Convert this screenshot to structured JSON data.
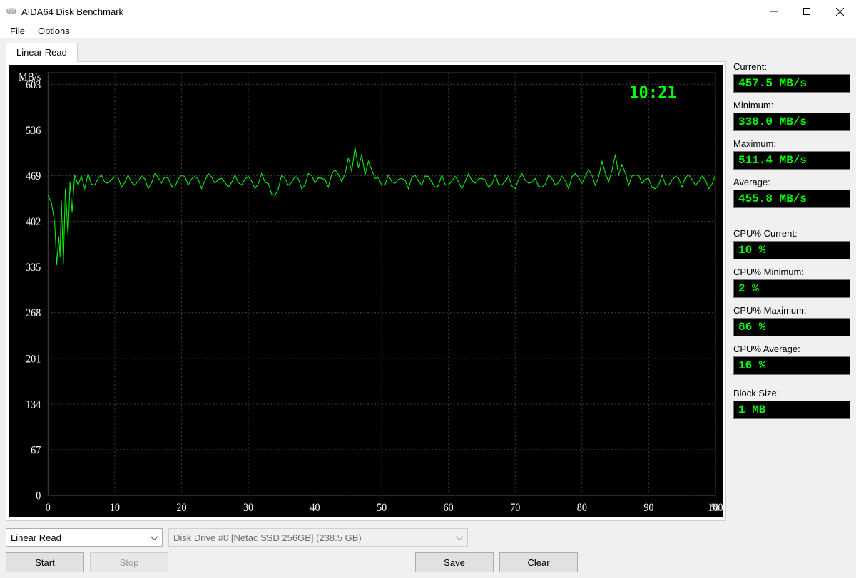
{
  "window": {
    "title": "AIDA64 Disk Benchmark"
  },
  "menu": {
    "file": "File",
    "options": "Options"
  },
  "tab": {
    "linear_read": "Linear Read"
  },
  "chart": {
    "type": "line",
    "background_color": "#000000",
    "grid_color": "#404040",
    "axis_text_color": "#ffffff",
    "line_color": "#00ff00",
    "timer_color": "#00ff00",
    "timer_fontsize": 22,
    "timer_text": "10:21",
    "y_unit": "MB/s",
    "y_ticks": [
      0,
      67,
      134,
      201,
      268,
      335,
      402,
      469,
      536,
      603
    ],
    "ylim": [
      0,
      620
    ],
    "x_unit": "%",
    "x_ticks": [
      0,
      10,
      20,
      30,
      40,
      50,
      60,
      70,
      80,
      90,
      100
    ],
    "xlim": [
      0,
      100
    ],
    "line_width": 1,
    "data": [
      [
        0,
        440
      ],
      [
        0.5,
        430
      ],
      [
        1,
        400
      ],
      [
        1.3,
        338
      ],
      [
        1.6,
        380
      ],
      [
        1.8,
        350
      ],
      [
        2,
        432
      ],
      [
        2.3,
        340
      ],
      [
        2.6,
        450
      ],
      [
        3,
        380
      ],
      [
        3.3,
        460
      ],
      [
        3.6,
        415
      ],
      [
        4,
        470
      ],
      [
        4.5,
        455
      ],
      [
        5,
        468
      ],
      [
        5.5,
        450
      ],
      [
        6,
        472
      ],
      [
        7,
        455
      ],
      [
        8,
        470
      ],
      [
        9,
        458
      ],
      [
        10,
        467
      ],
      [
        11,
        452
      ],
      [
        12,
        470
      ],
      [
        13,
        455
      ],
      [
        14,
        468
      ],
      [
        15,
        450
      ],
      [
        16,
        472
      ],
      [
        17,
        458
      ],
      [
        18,
        465
      ],
      [
        19,
        452
      ],
      [
        20,
        470
      ],
      [
        21,
        455
      ],
      [
        22,
        468
      ],
      [
        23,
        450
      ],
      [
        24,
        472
      ],
      [
        25,
        458
      ],
      [
        26,
        465
      ],
      [
        27,
        452
      ],
      [
        28,
        470
      ],
      [
        29,
        455
      ],
      [
        30,
        468
      ],
      [
        31,
        450
      ],
      [
        32,
        472
      ],
      [
        33,
        458
      ],
      [
        34,
        440
      ],
      [
        35,
        470
      ],
      [
        36,
        455
      ],
      [
        37,
        468
      ],
      [
        38,
        450
      ],
      [
        39,
        472
      ],
      [
        40,
        458
      ],
      [
        41,
        465
      ],
      [
        42,
        452
      ],
      [
        43,
        478
      ],
      [
        44,
        460
      ],
      [
        45,
        495
      ],
      [
        45.5,
        475
      ],
      [
        46,
        511
      ],
      [
        46.5,
        480
      ],
      [
        47,
        500
      ],
      [
        47.5,
        470
      ],
      [
        48,
        490
      ],
      [
        49,
        465
      ],
      [
        50,
        455
      ],
      [
        51,
        470
      ],
      [
        52,
        458
      ],
      [
        53,
        465
      ],
      [
        54,
        450
      ],
      [
        55,
        470
      ],
      [
        56,
        455
      ],
      [
        57,
        468
      ],
      [
        58,
        452
      ],
      [
        59,
        470
      ],
      [
        60,
        455
      ],
      [
        61,
        468
      ],
      [
        62,
        450
      ],
      [
        63,
        472
      ],
      [
        64,
        458
      ],
      [
        65,
        465
      ],
      [
        66,
        452
      ],
      [
        67,
        470
      ],
      [
        68,
        455
      ],
      [
        69,
        468
      ],
      [
        70,
        450
      ],
      [
        71,
        472
      ],
      [
        72,
        458
      ],
      [
        73,
        465
      ],
      [
        74,
        452
      ],
      [
        75,
        470
      ],
      [
        76,
        455
      ],
      [
        77,
        468
      ],
      [
        78,
        450
      ],
      [
        79,
        472
      ],
      [
        80,
        458
      ],
      [
        81,
        478
      ],
      [
        82,
        455
      ],
      [
        83,
        490
      ],
      [
        84,
        460
      ],
      [
        85,
        500
      ],
      [
        85.5,
        470
      ],
      [
        86,
        485
      ],
      [
        87,
        455
      ],
      [
        88,
        470
      ],
      [
        89,
        458
      ],
      [
        90,
        465
      ],
      [
        91,
        450
      ],
      [
        92,
        470
      ],
      [
        93,
        455
      ],
      [
        94,
        468
      ],
      [
        95,
        452
      ],
      [
        96,
        470
      ],
      [
        97,
        455
      ],
      [
        98,
        468
      ],
      [
        99,
        450
      ],
      [
        100,
        470
      ]
    ]
  },
  "controls": {
    "test_type_selected": "Linear Read",
    "disk_selected": "Disk Drive #0  [Netac SSD 256GB]  (238.5 GB)",
    "start": "Start",
    "stop": "Stop",
    "save": "Save",
    "clear": "Clear"
  },
  "stats": {
    "current_label": "Current:",
    "current_value": "457.5 MB/s",
    "minimum_label": "Minimum:",
    "minimum_value": "338.0 MB/s",
    "maximum_label": "Maximum:",
    "maximum_value": "511.4 MB/s",
    "average_label": "Average:",
    "average_value": "455.8 MB/s",
    "cpu_current_label": "CPU% Current:",
    "cpu_current_value": "10 %",
    "cpu_minimum_label": "CPU% Minimum:",
    "cpu_minimum_value": "2 %",
    "cpu_maximum_label": "CPU% Maximum:",
    "cpu_maximum_value": "86 %",
    "cpu_average_label": "CPU% Average:",
    "cpu_average_value": "16 %",
    "block_size_label": "Block Size:",
    "block_size_value": "1 MB"
  },
  "colors": {
    "window_bg": "#f0f0f0",
    "stat_value_bg": "#000000",
    "stat_value_fg": "#00ff00",
    "button_bg": "#e1e1e1",
    "button_border": "#adadad"
  }
}
